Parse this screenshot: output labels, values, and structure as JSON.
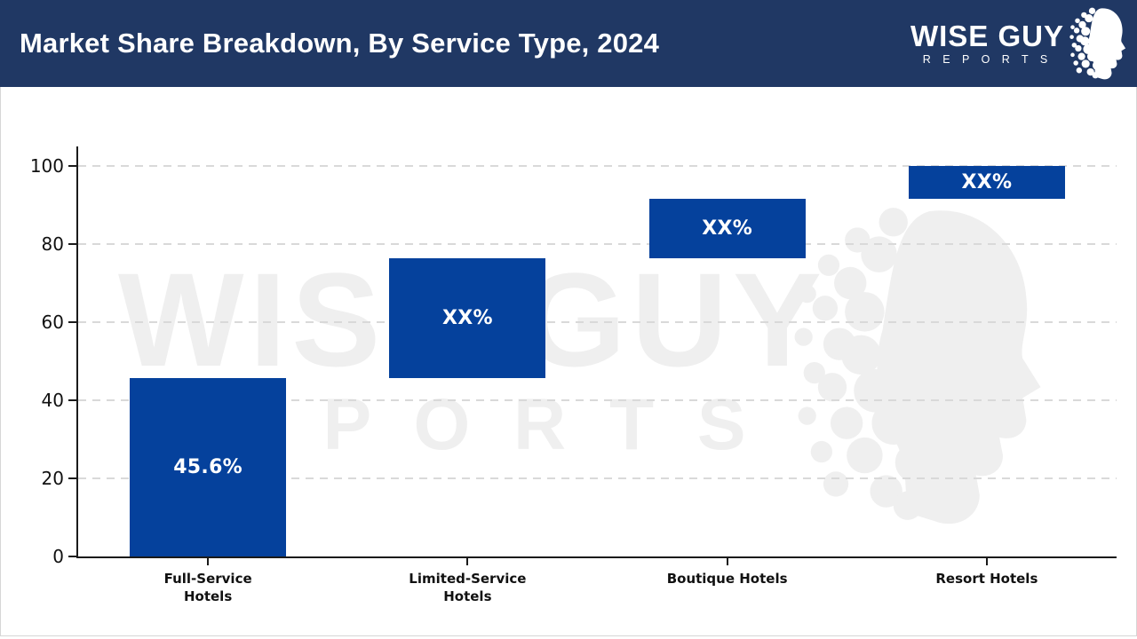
{
  "header": {
    "title": "Market Share Breakdown, By Service Type, 2024",
    "bg_color": "#203864",
    "logo": {
      "line1": "WISE GUY",
      "line2": "R E P O R T S"
    }
  },
  "watermark": {
    "line1": "WISE GUY",
    "line2": "R E P O R T S"
  },
  "chart_data": {
    "type": "bar",
    "variant": "waterfall",
    "title": "Market Share Breakdown, By Service Type, 2024",
    "categories": [
      "Full-Service\nHotels",
      "Limited-Service\nHotels",
      "Boutique Hotels",
      "Resort Hotels"
    ],
    "segments": [
      {
        "category": "Full-Service Hotels",
        "start": 0,
        "end": 45.6,
        "label": "45.6%"
      },
      {
        "category": "Limited-Service Hotels",
        "start": 45.6,
        "end": 76.4,
        "label": "XX%"
      },
      {
        "category": "Boutique Hotels",
        "start": 76.4,
        "end": 91.6,
        "label": "XX%"
      },
      {
        "category": "Resort Hotels",
        "start": 91.6,
        "end": 100,
        "label": "XX%"
      }
    ],
    "xlabel": "",
    "ylabel": "",
    "ylim": [
      0,
      105
    ],
    "yticks": [
      0,
      20,
      40,
      60,
      80,
      100
    ],
    "grid": "horizontal-dashed",
    "legend": "none",
    "bar_color": "#05419c",
    "bar_label_color": "#ffffff",
    "axis_color": "#1a1a1a",
    "grid_color": "#d9d9d9"
  }
}
